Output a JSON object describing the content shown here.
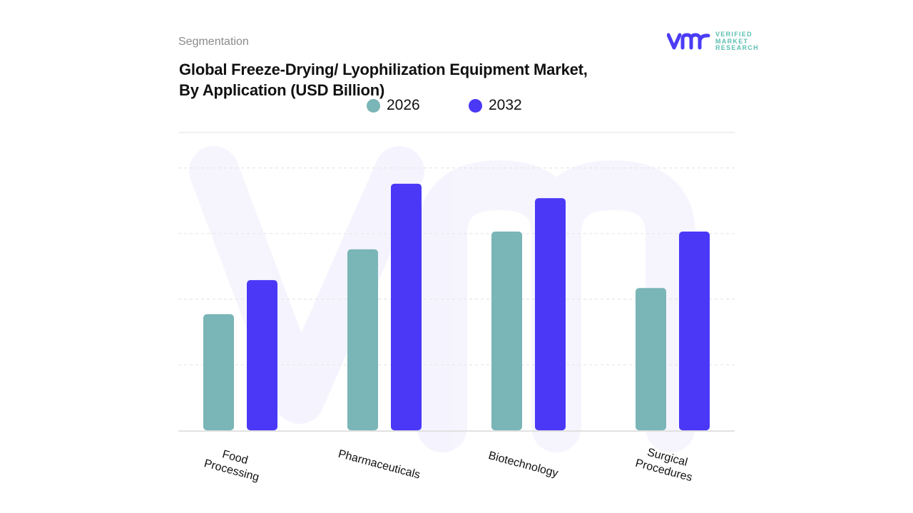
{
  "header": {
    "section": "Segmentation",
    "title_line1": "Global Freeze-Drying/ Lyophilization Equipment Market,",
    "title_line2": "By Application (USD Billion)"
  },
  "logo": {
    "mark": "vmr",
    "line1": "VERIFIED",
    "line2": "MARKET",
    "line3": "RESEARCH",
    "color": "#4b3cf5",
    "text_color": "#5bbfb2"
  },
  "chart_data": {
    "type": "bar",
    "title": "Global Freeze-Drying/ Lyophilization Equipment Market, By Application (USD Billion)",
    "categories": [
      "Food\nProcessing",
      "Pharmaceuticals",
      "Biotechnology",
      "Surgical\nProcedures"
    ],
    "series": [
      {
        "name": "2026",
        "color": "#7ab5b7",
        "values": [
          1.77,
          2.76,
          3.03,
          2.17
        ]
      },
      {
        "name": "2032",
        "color": "#4b38f7",
        "values": [
          2.29,
          3.76,
          3.54,
          3.03
        ]
      }
    ],
    "ylim": [
      0,
      4.54
    ],
    "grid": true,
    "gridlines": [
      1,
      2,
      3,
      4
    ],
    "legend_position": "top-center",
    "value_labels": false,
    "y_axis_labels": false
  }
}
